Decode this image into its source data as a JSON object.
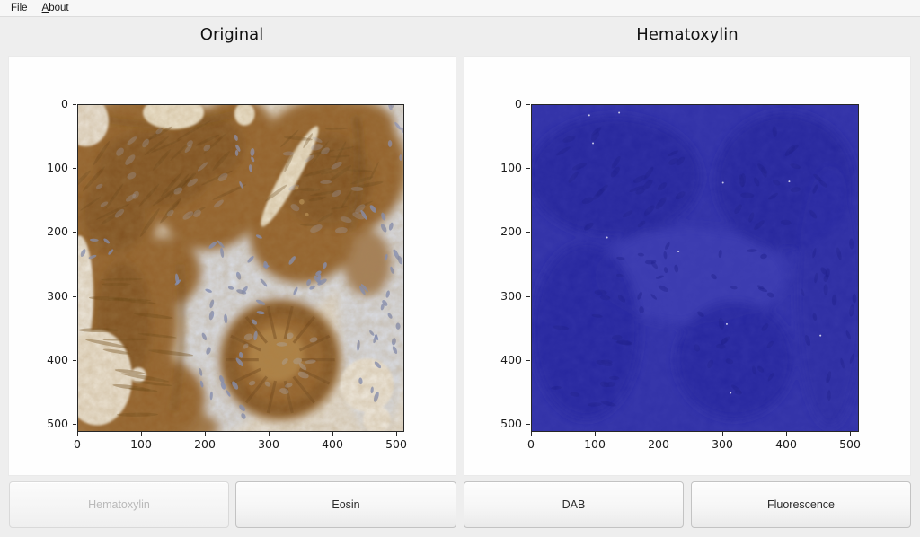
{
  "menu": {
    "items": [
      {
        "label": "File",
        "mnemonic": ""
      },
      {
        "label": "About",
        "mnemonic": "A"
      }
    ]
  },
  "panels": [
    {
      "id": "original",
      "title": "Original",
      "x_ticks": [
        "0",
        "100",
        "200",
        "300",
        "400",
        "500"
      ],
      "y_ticks": [
        "0",
        "100",
        "200",
        "300",
        "400",
        "500"
      ]
    },
    {
      "id": "hematoxylin",
      "title": "Hematoxylin",
      "x_ticks": [
        "0",
        "100",
        "200",
        "300",
        "400",
        "500"
      ],
      "y_ticks": [
        "0",
        "100",
        "200",
        "300",
        "400",
        "500"
      ]
    }
  ],
  "buttons": [
    {
      "label": "Hematoxylin",
      "enabled": false
    },
    {
      "label": "Eosin",
      "enabled": true
    },
    {
      "label": "DAB",
      "enabled": true
    },
    {
      "label": "Fluorescence",
      "enabled": true
    }
  ],
  "colors": {
    "window_background": "#eeeeee",
    "hematoxylin_blue": "#3030a6",
    "dab_brown": "#93602a",
    "disabled_text": "#b9b9b9"
  }
}
